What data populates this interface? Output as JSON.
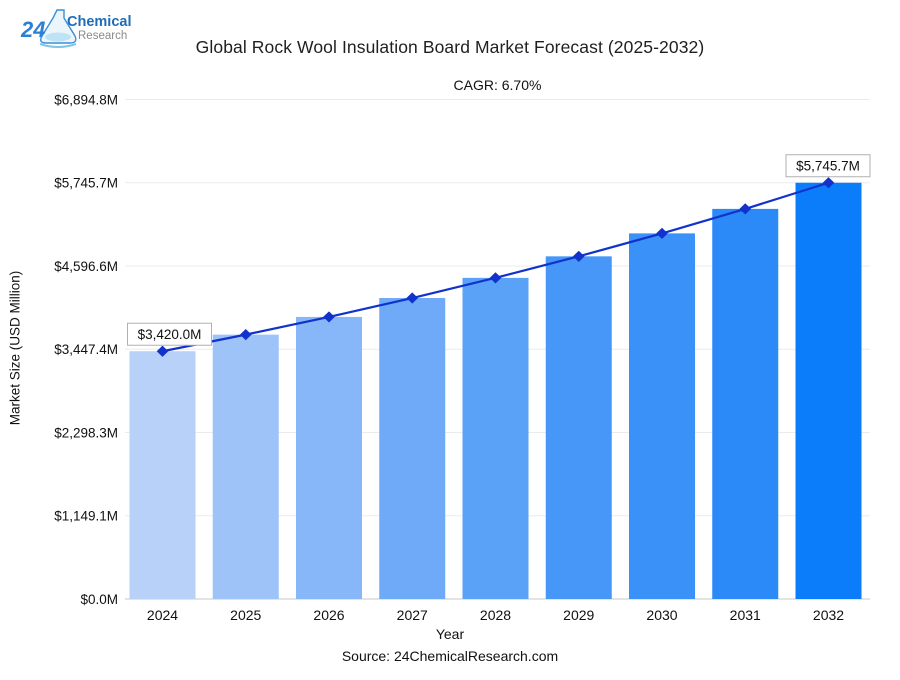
{
  "logo": {
    "number": "24",
    "line1": "Chemical",
    "line2": "Research",
    "color_primary": "#2b7fd4",
    "color_dark": "#1e6cb5",
    "color_gray": "#8a8a8a",
    "flask_fill": "#bfe3f5",
    "flask_stroke": "#3a8fd8"
  },
  "header": {
    "title": "Global Rock Wool Insulation Board Market Forecast (2025-2032)",
    "subtitle": "CAGR: 6.70%"
  },
  "chart_data": {
    "type": "bar",
    "overlay": "line-with-diamond-markers",
    "title": "Global Rock Wool Insulation Board Market Forecast (2025-2032)",
    "subtitle": "CAGR: 6.70%",
    "xlabel": "Year",
    "ylabel": "Market Size (USD Million)",
    "categories": [
      "2024",
      "2025",
      "2026",
      "2027",
      "2028",
      "2029",
      "2030",
      "2031",
      "2032"
    ],
    "values": [
      3420.0,
      3649.1,
      3893.6,
      4154.5,
      4432.9,
      4729.9,
      5046.8,
      5384.9,
      5745.7
    ],
    "ylim": [
      0,
      6894.8
    ],
    "ytick_values": [
      0,
      1149.1,
      2298.3,
      3447.4,
      4596.6,
      5745.7,
      6894.8
    ],
    "ytick_labels": [
      "$0.0M",
      "$1,149.1M",
      "$2,298.3M",
      "$3,447.4M",
      "$4,596.6M",
      "$5,745.7M",
      "$6,894.8M"
    ],
    "grid": "horizontal",
    "legend": "none",
    "annotations": [
      {
        "category": "2024",
        "text": "$3,420.0M"
      },
      {
        "category": "2032",
        "text": "$5,745.7M"
      }
    ],
    "bar_colors": [
      "#b7d1f8",
      "#9dc3f8",
      "#87b7f8",
      "#6eaaf8",
      "#5aa2f8",
      "#4697f8",
      "#3a91f8",
      "#2b89f8",
      "#0b7dfb"
    ],
    "line_color": "#1133cc",
    "marker": "diamond",
    "grid_color": "#ebebeb",
    "axis_color": "#d4d4d4",
    "annotation_border": "#b0b0b0"
  },
  "footer": {
    "source": "Source: 24ChemicalResearch.com"
  }
}
